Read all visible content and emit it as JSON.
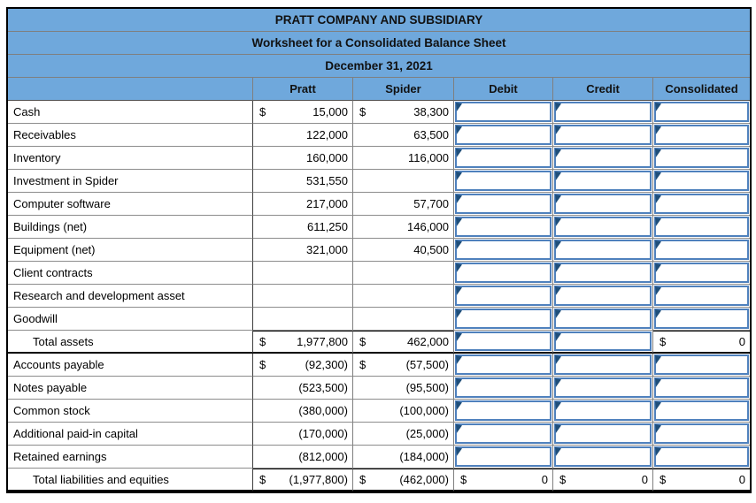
{
  "titles": {
    "company": "PRATT COMPANY AND SUBSIDIARY",
    "subtitle": "Worksheet for a Consolidated Balance Sheet",
    "date": "December 31, 2021"
  },
  "columns": {
    "label": "",
    "pratt": "Pratt",
    "spider": "Spider",
    "debit": "Debit",
    "credit": "Credit",
    "consolidated": "Consolidated"
  },
  "colors": {
    "header_bg": "#6FA8DC",
    "input_border": "#4F81BD",
    "input_flag": "#1F4E79",
    "grid_line": "#7f7f7f",
    "text": "#000000"
  },
  "rows": [
    {
      "label": "Cash",
      "indent": false,
      "total": false,
      "pratt": {
        "d": "$",
        "v": "15,000"
      },
      "spider": {
        "d": "$",
        "v": "38,300"
      },
      "debit": {
        "input": true
      },
      "credit": {
        "input": true
      },
      "consolidated": {
        "input": true
      }
    },
    {
      "label": "Receivables",
      "indent": false,
      "total": false,
      "pratt": {
        "v": "122,000"
      },
      "spider": {
        "v": "63,500"
      },
      "debit": {
        "input": true
      },
      "credit": {
        "input": true
      },
      "consolidated": {
        "input": true
      }
    },
    {
      "label": "Inventory",
      "indent": false,
      "total": false,
      "pratt": {
        "v": "160,000"
      },
      "spider": {
        "v": "116,000"
      },
      "debit": {
        "input": true
      },
      "credit": {
        "input": true
      },
      "consolidated": {
        "input": true
      }
    },
    {
      "label": "Investment in Spider",
      "indent": false,
      "total": false,
      "pratt": {
        "v": "531,550"
      },
      "spider": {},
      "debit": {
        "input": true
      },
      "credit": {
        "input": true
      },
      "consolidated": {
        "input": true
      }
    },
    {
      "label": "Computer software",
      "indent": false,
      "total": false,
      "pratt": {
        "v": "217,000"
      },
      "spider": {
        "v": "57,700"
      },
      "debit": {
        "input": true
      },
      "credit": {
        "input": true
      },
      "consolidated": {
        "input": true
      }
    },
    {
      "label": "Buildings (net)",
      "indent": false,
      "total": false,
      "pratt": {
        "v": "611,250"
      },
      "spider": {
        "v": "146,000"
      },
      "debit": {
        "input": true
      },
      "credit": {
        "input": true
      },
      "consolidated": {
        "input": true
      }
    },
    {
      "label": "Equipment (net)",
      "indent": false,
      "total": false,
      "pratt": {
        "v": "321,000"
      },
      "spider": {
        "v": "40,500"
      },
      "debit": {
        "input": true
      },
      "credit": {
        "input": true
      },
      "consolidated": {
        "input": true
      }
    },
    {
      "label": "Client contracts",
      "indent": false,
      "total": false,
      "pratt": {},
      "spider": {},
      "debit": {
        "input": true
      },
      "credit": {
        "input": true
      },
      "consolidated": {
        "input": true
      }
    },
    {
      "label": "Research and development asset",
      "indent": false,
      "total": false,
      "pratt": {},
      "spider": {},
      "debit": {
        "input": true
      },
      "credit": {
        "input": true
      },
      "consolidated": {
        "input": true
      }
    },
    {
      "label": "Goodwill",
      "indent": false,
      "total": false,
      "pratt": {},
      "spider": {},
      "debit": {
        "input": true
      },
      "credit": {
        "input": true
      },
      "consolidated": {
        "input": true
      }
    },
    {
      "label": "Total assets",
      "indent": true,
      "total": true,
      "pratt": {
        "d": "$",
        "v": "1,977,800"
      },
      "spider": {
        "d": "$",
        "v": "462,000"
      },
      "debit": {
        "input": true
      },
      "credit": {
        "input": true
      },
      "consolidated": {
        "d": "$",
        "v": "0"
      }
    },
    {
      "label": "Accounts payable",
      "indent": false,
      "total": false,
      "pratt": {
        "d": "$",
        "v": "(92,300)"
      },
      "spider": {
        "d": "$",
        "v": "(57,500)"
      },
      "debit": {
        "input": true
      },
      "credit": {
        "input": true
      },
      "consolidated": {
        "input": true
      }
    },
    {
      "label": "Notes payable",
      "indent": false,
      "total": false,
      "pratt": {
        "v": "(523,500)"
      },
      "spider": {
        "v": "(95,500)"
      },
      "debit": {
        "input": true
      },
      "credit": {
        "input": true
      },
      "consolidated": {
        "input": true
      }
    },
    {
      "label": "Common stock",
      "indent": false,
      "total": false,
      "pratt": {
        "v": "(380,000)"
      },
      "spider": {
        "v": "(100,000)"
      },
      "debit": {
        "input": true
      },
      "credit": {
        "input": true
      },
      "consolidated": {
        "input": true
      }
    },
    {
      "label": "Additional paid-in capital",
      "indent": false,
      "total": false,
      "pratt": {
        "v": "(170,000)"
      },
      "spider": {
        "v": "(25,000)"
      },
      "debit": {
        "input": true
      },
      "credit": {
        "input": true
      },
      "consolidated": {
        "input": true
      }
    },
    {
      "label": "Retained earnings",
      "indent": false,
      "total": false,
      "pratt": {
        "v": "(812,000)"
      },
      "spider": {
        "v": "(184,000)"
      },
      "debit": {
        "input": true
      },
      "credit": {
        "input": true
      },
      "consolidated": {
        "input": true
      }
    },
    {
      "label": "Total liabilities and equities",
      "indent": true,
      "total": true,
      "pratt": {
        "d": "$",
        "v": "(1,977,800)"
      },
      "spider": {
        "d": "$",
        "v": "(462,000)"
      },
      "debit": {
        "d": "$",
        "v": "0"
      },
      "credit": {
        "d": "$",
        "v": "0"
      },
      "consolidated": {
        "d": "$",
        "v": "0"
      }
    }
  ]
}
